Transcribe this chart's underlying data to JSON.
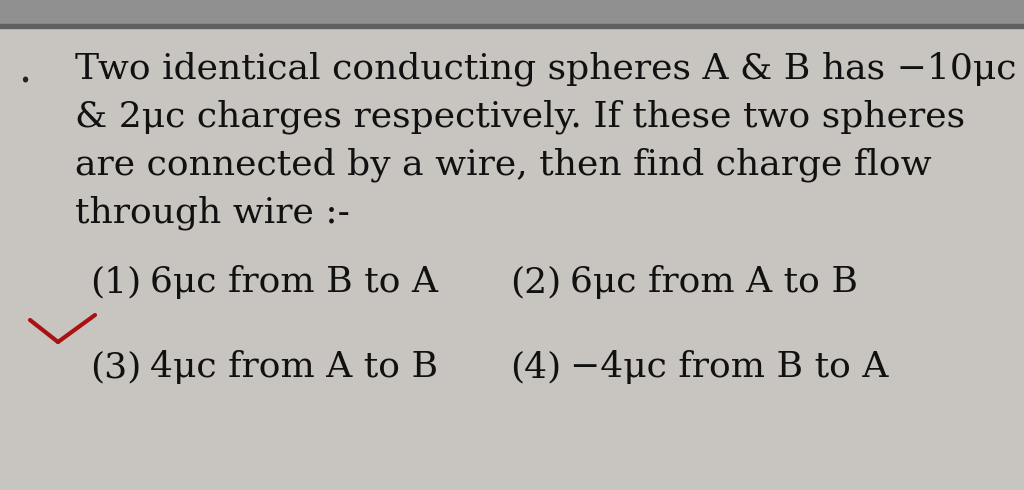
{
  "background_color": "#c8c5c0",
  "top_bar_color": "#909090",
  "top_bar_dark": "#606060",
  "question_dot_color": "#222222",
  "text_color": "#111111",
  "answer_mark_color": "#aa1111",
  "main_text_lines": [
    "Two identical conducting spheres A & B has −10μc",
    "& 2μc charges respectively. If these two spheres",
    "are connected by a wire, then find charge flow",
    "through wire :-"
  ],
  "option1_num": "(1)",
  "option1_txt": "6μc from B to A",
  "option2_num": "(2)",
  "option2_txt": "6μc from A to B",
  "option3_num": "(3)",
  "option3_txt": "4μc from A to B",
  "option4_num": "(4)",
  "option4_txt": "−4μc from B to A",
  "font_size_main": 26,
  "font_size_options": 26,
  "fig_width": 10.24,
  "fig_height": 4.9,
  "dpi": 100
}
